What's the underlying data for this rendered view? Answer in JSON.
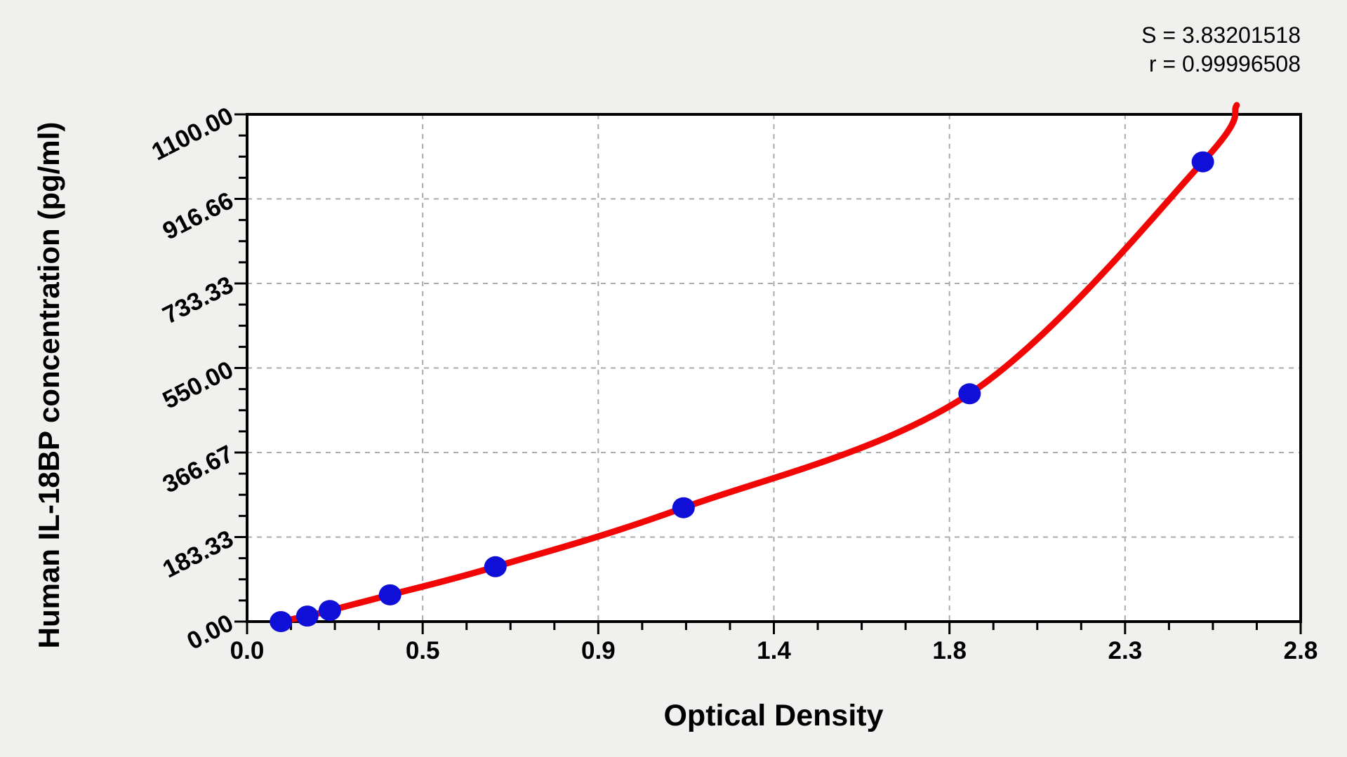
{
  "chart_data": {
    "type": "scatter",
    "subtype": "standard-curve-with-fit-line",
    "title": "",
    "xlabel": "Optical Density",
    "ylabel": "Human IL-18BP concentration (pg/ml)",
    "xlim": [
      0,
      2.8
    ],
    "ylim": [
      0,
      1100
    ],
    "x_tick_labels": [
      "0.0",
      "0.5",
      "0.9",
      "1.4",
      "1.8",
      "2.3",
      "2.8"
    ],
    "y_tick_labels": [
      "0.00",
      "183.33",
      "366.67",
      "550.00",
      "733.33",
      "916.66",
      "1100.00"
    ],
    "minor_ticks_between_majors": 3,
    "grid": {
      "show": true,
      "style": "dashed",
      "at": "major-ticks"
    },
    "legend": "none",
    "points": {
      "optical_density": [
        0.09,
        0.16,
        0.22,
        0.38,
        0.66,
        1.16,
        1.92,
        2.54
      ],
      "concentration_pg_ml": [
        0,
        12,
        24,
        58,
        119,
        247,
        494,
        997
      ]
    },
    "fit_curve_samples": [
      [
        0.07,
        -6
      ],
      [
        0.09,
        0
      ],
      [
        0.16,
        12
      ],
      [
        0.22,
        24
      ],
      [
        0.38,
        58
      ],
      [
        0.66,
        119
      ],
      [
        1.16,
        247
      ],
      [
        1.92,
        494
      ],
      [
        2.54,
        997
      ],
      [
        2.63,
        1120
      ]
    ],
    "annotations": {
      "s_label": "S = 3.83201518",
      "r_label": "r = 0.99996508",
      "S": 3.83201518,
      "r": 0.99996508
    },
    "colors": {
      "curve": "#f10505",
      "points": "#0f0fd7",
      "grid": "#ababab",
      "axis": "#000000",
      "plot_bg": "#ffffff",
      "page_bg": "#f0f0ee"
    }
  }
}
